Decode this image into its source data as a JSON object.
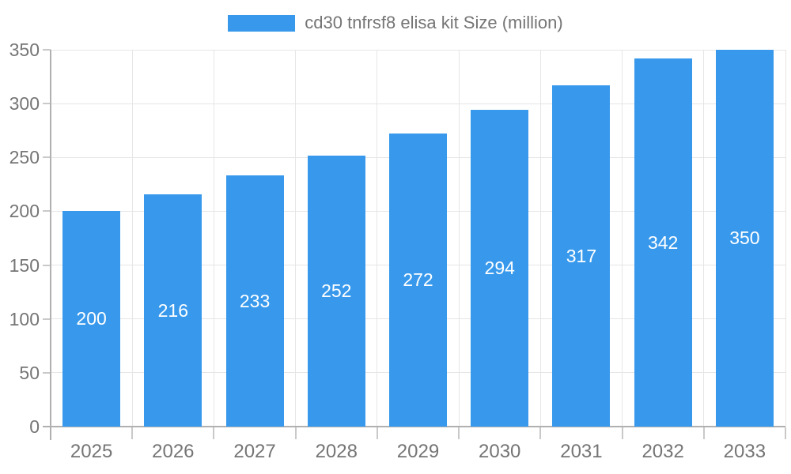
{
  "legend": {
    "label": "cd30 tnfrsf8 elisa kit Size (million)"
  },
  "chart_data": {
    "type": "bar",
    "title": "cd30 tnfrsf8 elisa kit Size (million)",
    "categories": [
      "2025",
      "2026",
      "2027",
      "2028",
      "2029",
      "2030",
      "2031",
      "2032",
      "2033"
    ],
    "series": [
      {
        "name": "cd30 tnfrsf8 elisa kit Size (million)",
        "values": [
          200,
          216,
          233,
          252,
          272,
          294,
          317,
          342,
          350
        ]
      }
    ],
    "bar_value_labels": [
      "200",
      "216",
      "233",
      "252",
      "272",
      "294",
      "317",
      "342",
      "350"
    ],
    "xlabel": "",
    "ylabel": "",
    "ylim": [
      0,
      350
    ],
    "yticks": [
      0,
      50,
      100,
      150,
      200,
      250,
      300,
      350
    ],
    "grid": "horizontal-and-vertical",
    "legend_position": "top-center",
    "value_label_position": "center-of-bar"
  },
  "colors": {
    "bar": "#3899ec",
    "grid": "#e6e6e6",
    "axis": "#b0b0b0",
    "tick": "#c9c9c9",
    "text": "#757575",
    "bar_label": "#ffffff",
    "background": "#ffffff"
  }
}
